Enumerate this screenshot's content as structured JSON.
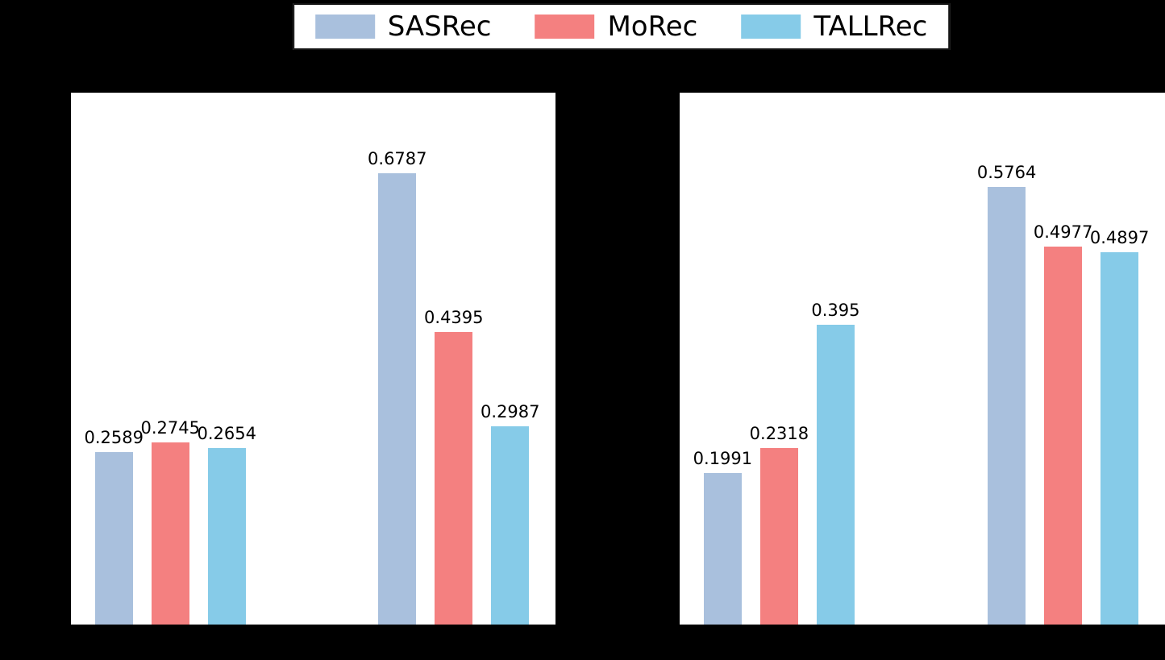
{
  "page": {
    "background_color": "#000000",
    "panel_color": "#ffffff"
  },
  "legend": {
    "position": "top-center",
    "items": [
      {
        "label": "SASRec",
        "color": "#a9c0dd"
      },
      {
        "label": "MoRec",
        "color": "#f48080"
      },
      {
        "label": "TALLRec",
        "color": "#86cbe8"
      }
    ]
  },
  "chart_data": [
    {
      "type": "bar",
      "panel": "left",
      "title": "",
      "xlabel": "",
      "ylabel": "",
      "categories": [
        "",
        ""
      ],
      "ylim": [
        0,
        0.8
      ],
      "grid": false,
      "value_labels": true,
      "series": [
        {
          "name": "SASRec",
          "color": "#a9c0dd",
          "values": [
            0.2589,
            0.6787
          ]
        },
        {
          "name": "MoRec",
          "color": "#f48080",
          "values": [
            0.2745,
            0.4395
          ]
        },
        {
          "name": "TALLRec",
          "color": "#86cbe8",
          "values": [
            0.2654,
            0.2987
          ]
        }
      ]
    },
    {
      "type": "bar",
      "panel": "right",
      "title": "",
      "xlabel": "",
      "ylabel": "",
      "categories": [
        "",
        ""
      ],
      "ylim": [
        0,
        0.7
      ],
      "grid": false,
      "value_labels": true,
      "series": [
        {
          "name": "SASRec",
          "color": "#a9c0dd",
          "values": [
            0.1991,
            0.5764
          ]
        },
        {
          "name": "MoRec",
          "color": "#f48080",
          "values": [
            0.2318,
            0.4977
          ]
        },
        {
          "name": "TALLRec",
          "color": "#86cbe8",
          "values": [
            0.395,
            0.4897
          ]
        }
      ]
    }
  ]
}
